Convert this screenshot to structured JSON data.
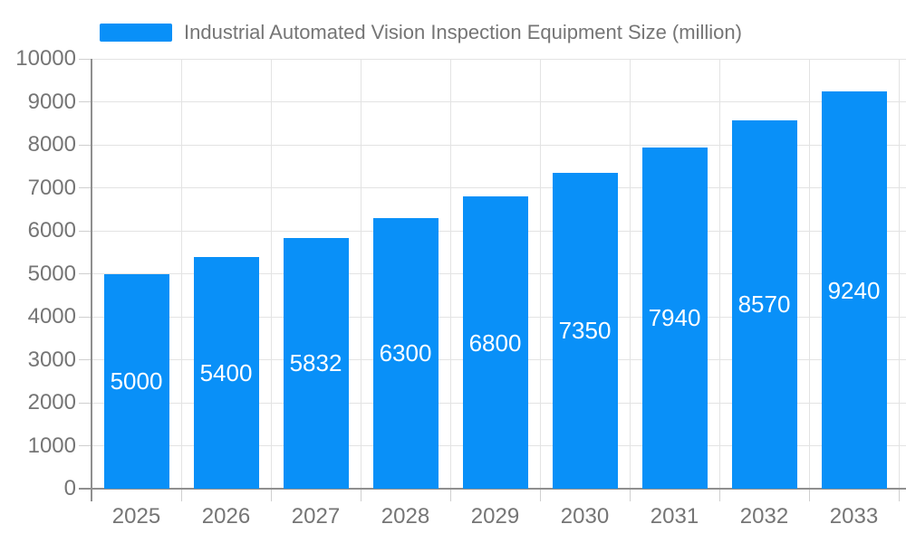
{
  "legend": {
    "label": "Industrial Automated Vision Inspection Equipment Size (million)"
  },
  "chart_data": {
    "type": "bar",
    "title": "Industrial Automated Vision Inspection Equipment Size (million)",
    "series_name": "Industrial Automated Vision Inspection Equipment Size (million)",
    "categories": [
      "2025",
      "2026",
      "2027",
      "2028",
      "2029",
      "2030",
      "2031",
      "2032",
      "2033"
    ],
    "values": [
      5000,
      5400,
      5832,
      6300,
      6800,
      7350,
      7940,
      8570,
      9240
    ],
    "xlabel": "",
    "ylabel": "",
    "ylim": [
      0,
      10000
    ],
    "ytick_step": 1000,
    "ytick_labels": [
      "0",
      "1000",
      "2000",
      "3000",
      "4000",
      "5000",
      "6000",
      "7000",
      "8000",
      "9000",
      "10000"
    ],
    "grid": true,
    "legend_position": "top",
    "bar_color": "#0990F8",
    "value_label_color": "#FFFFFF",
    "axis_label_color": "#757575",
    "gridline_color": "#E3E3E3",
    "axis_line_color": "#8F8F8F",
    "background_color": "#FFFFFF"
  }
}
